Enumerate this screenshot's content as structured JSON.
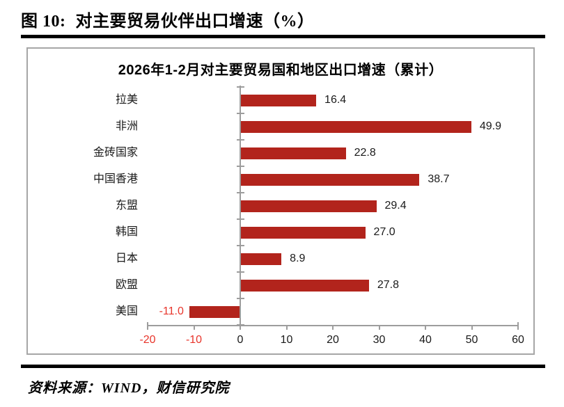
{
  "figure": {
    "label": "图 10:",
    "title": "对主要贸易伙伴出口增速（%）",
    "source": "资料来源：WIND，财信研究院"
  },
  "chart_data": {
    "type": "bar",
    "orientation": "horizontal",
    "title": "2026年1-2月对主要贸易国和地区出口增速（累计）",
    "categories": [
      "拉美",
      "非洲",
      "金砖国家",
      "中国香港",
      "东盟",
      "韩国",
      "日本",
      "欧盟",
      "美国"
    ],
    "values": [
      16.4,
      49.9,
      22.8,
      38.7,
      29.4,
      27.0,
      8.9,
      27.8,
      -11.0
    ],
    "value_labels": [
      "16.4",
      "49.9",
      "22.8",
      "38.7",
      "29.4",
      "27.0",
      "8.9",
      "27.8",
      "-11.0"
    ],
    "xlabel": "",
    "ylabel": "",
    "xlim": [
      -20,
      60
    ],
    "xticks": [
      -20,
      -10,
      0,
      10,
      20,
      30,
      40,
      50,
      60
    ],
    "grid": false,
    "legend": false,
    "colors": {
      "bar": "#b2241c",
      "negative_text": "#e8352b",
      "axis": "#9d9d9d",
      "label_text": "#1a1a1a"
    }
  }
}
